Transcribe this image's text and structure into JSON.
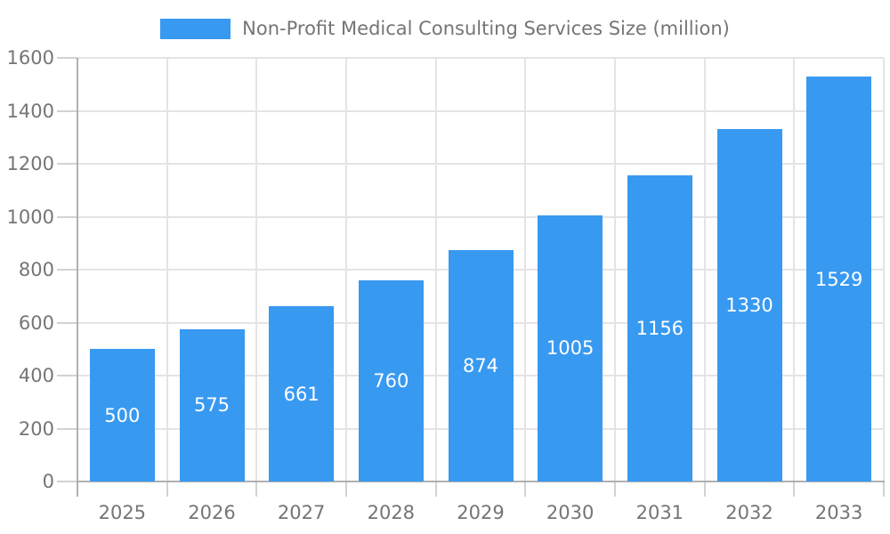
{
  "chart_data": {
    "type": "bar",
    "title": "Non-Profit Medical Consulting Services Size (million)",
    "categories": [
      "2025",
      "2026",
      "2027",
      "2028",
      "2029",
      "2030",
      "2031",
      "2032",
      "2033"
    ],
    "values": [
      500,
      575,
      661,
      760,
      874,
      1005,
      1156,
      1330,
      1529
    ],
    "series": [
      {
        "name": "Non-Profit Medical Consulting Services Size (million)",
        "values": [
          500,
          575,
          661,
          760,
          874,
          1005,
          1156,
          1330,
          1529
        ]
      }
    ],
    "xlabel": "",
    "ylabel": "",
    "ylim": [
      0,
      1600
    ],
    "ytick_step": 200,
    "yticks": [
      0,
      200,
      400,
      600,
      800,
      1000,
      1200,
      1400,
      1600
    ],
    "grid": true,
    "legend_position": "top",
    "bar_color": "#3899f1",
    "bar_label_color": "#ffffff",
    "axis_text_color": "#757575"
  }
}
